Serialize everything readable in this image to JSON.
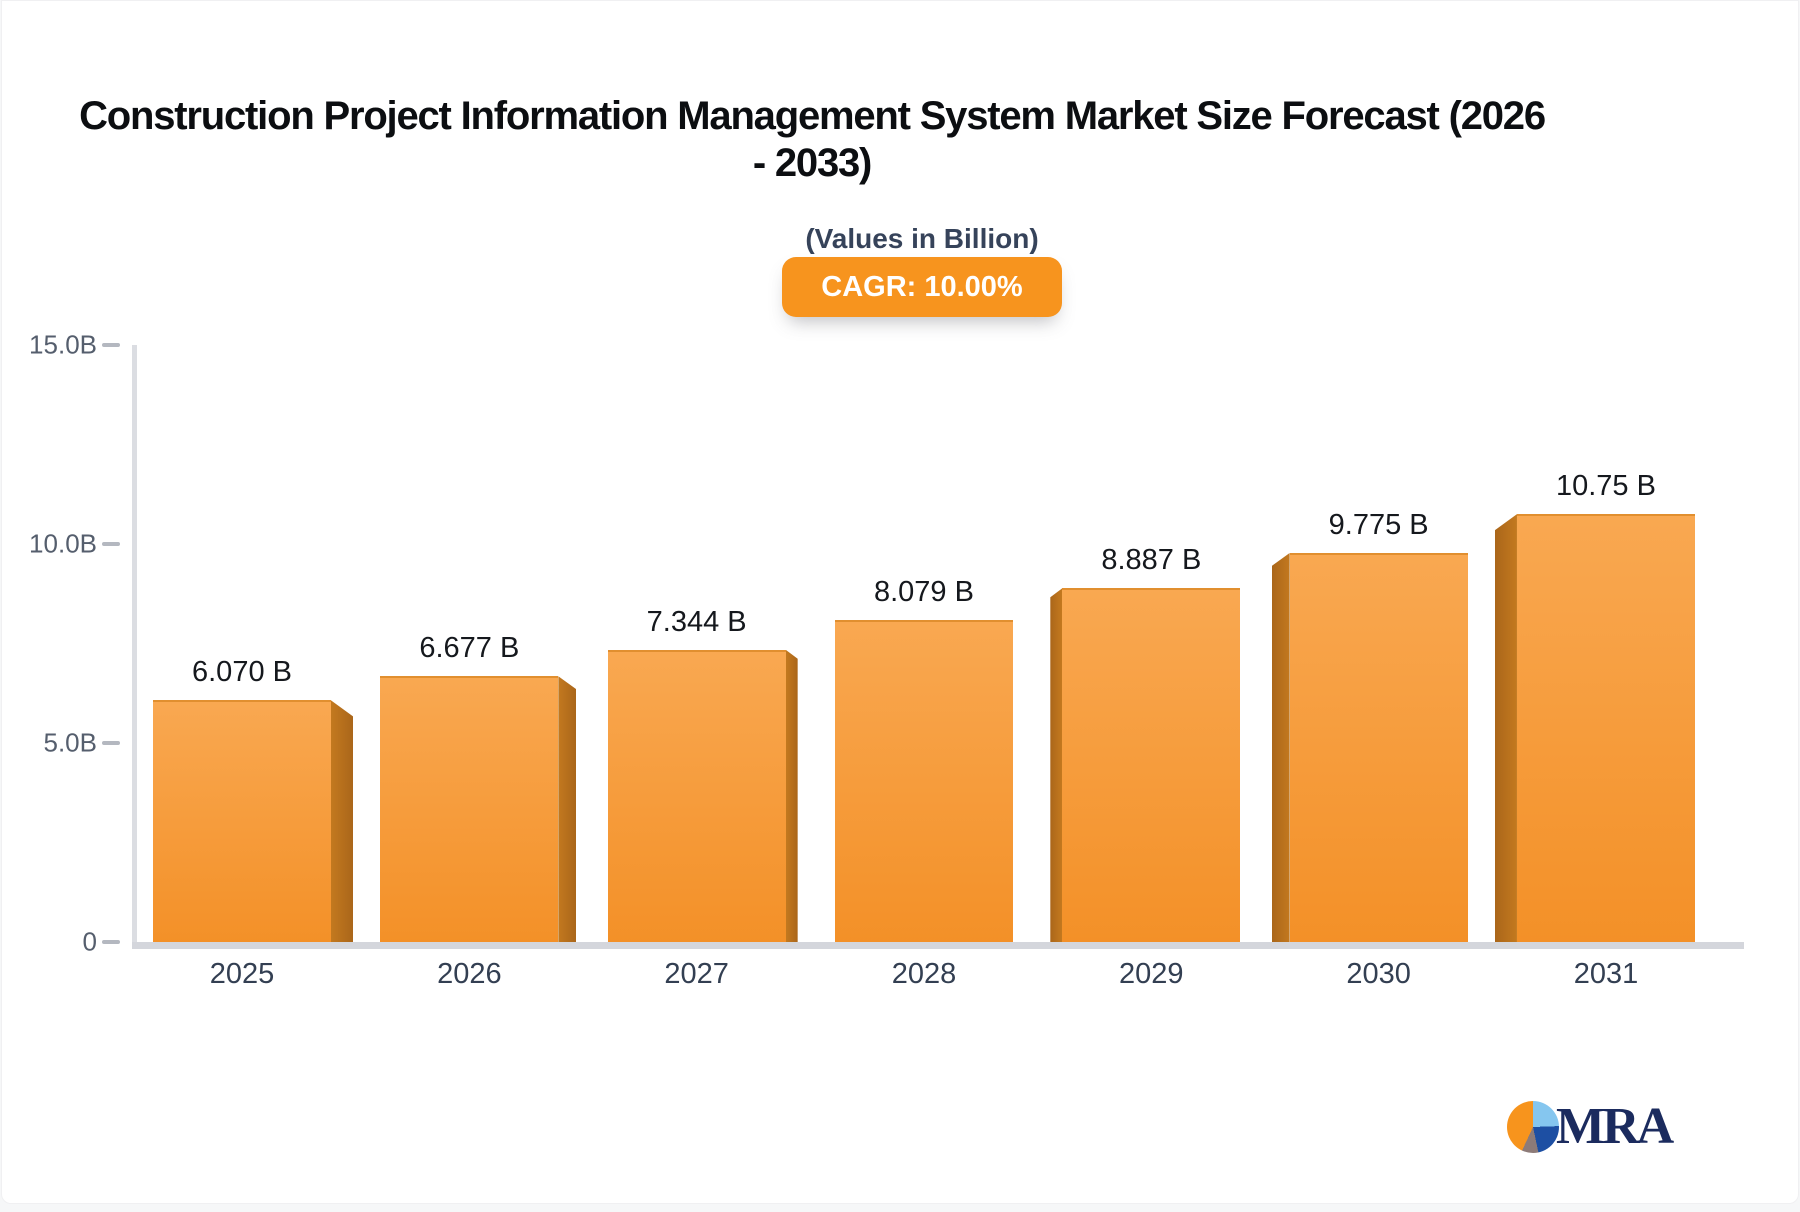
{
  "chart_data": {
    "type": "bar",
    "title": "Construction Project Information Management System Market Size Forecast (2026 - 2033)",
    "subtitle": "(Values in Billion)",
    "cagr_badge": "CAGR: 10.00%",
    "categories": [
      "2025",
      "2026",
      "2027",
      "2028",
      "2029",
      "2030",
      "2031"
    ],
    "values": [
      6.07,
      6.677,
      7.344,
      8.079,
      8.887,
      9.775,
      10.75
    ],
    "bar_labels": [
      "6.070 B",
      "6.677 B",
      "7.344 B",
      "8.079 B",
      "8.887 B",
      "9.775 B",
      "10.75 B"
    ],
    "unit": "Billion",
    "ylabel": "",
    "xlabel": "",
    "ylim": [
      0,
      15
    ],
    "y_ticks": [
      "15.0B",
      "10.0B",
      "5.0B",
      "0"
    ],
    "grid": false,
    "legend": false,
    "bar_color_top": "#F9A851",
    "bar_color_bottom": "#F39027",
    "bar_side_color": "#B9701D",
    "badge_color": "#F7941E"
  },
  "logo": {
    "text": "MRA"
  }
}
